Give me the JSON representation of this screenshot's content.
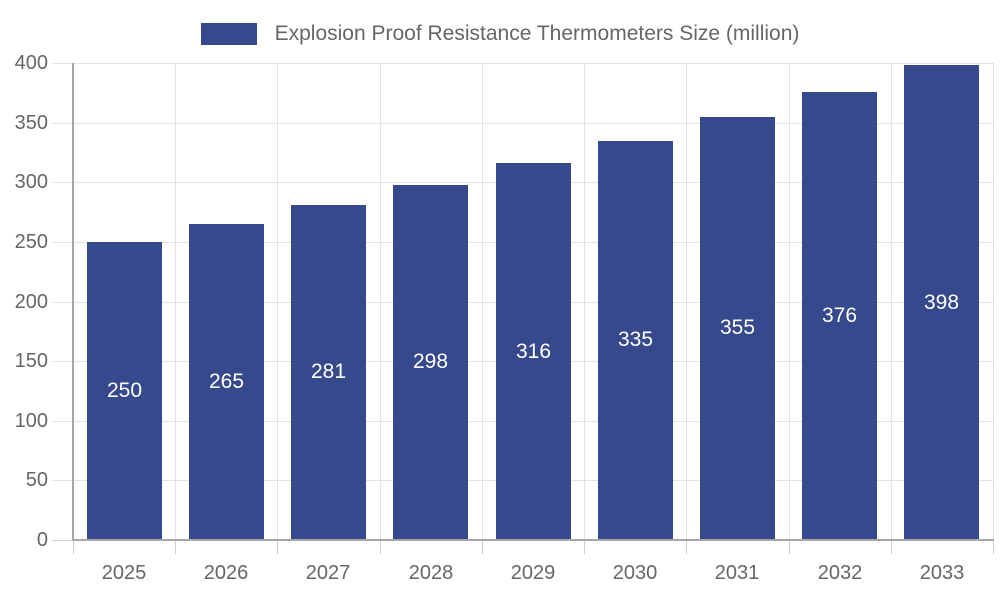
{
  "legend": {
    "label": "Explosion Proof Resistance Thermometers Size (million)"
  },
  "chart_data": {
    "type": "bar",
    "title": "Explosion Proof Resistance Thermometers Size (million)",
    "categories": [
      "2025",
      "2026",
      "2027",
      "2028",
      "2029",
      "2030",
      "2031",
      "2032",
      "2033"
    ],
    "values": [
      250,
      265,
      281,
      298,
      316,
      335,
      355,
      376,
      398
    ],
    "xlabel": "",
    "ylabel": "",
    "ylim": [
      0,
      400
    ],
    "yticks": [
      0,
      50,
      100,
      150,
      200,
      250,
      300,
      350,
      400
    ],
    "grid": true,
    "legend_position": "top",
    "value_labels": "inside-center",
    "colors": {
      "bar": "#36498C",
      "bar_label": "#ffffff",
      "axis_line": "#a6a6a6",
      "grid_line": "#e3e3e3",
      "tick_line": "#cdcdcd",
      "axis_text": "#666666",
      "legend_text": "#666666",
      "background": "#ffffff"
    }
  }
}
